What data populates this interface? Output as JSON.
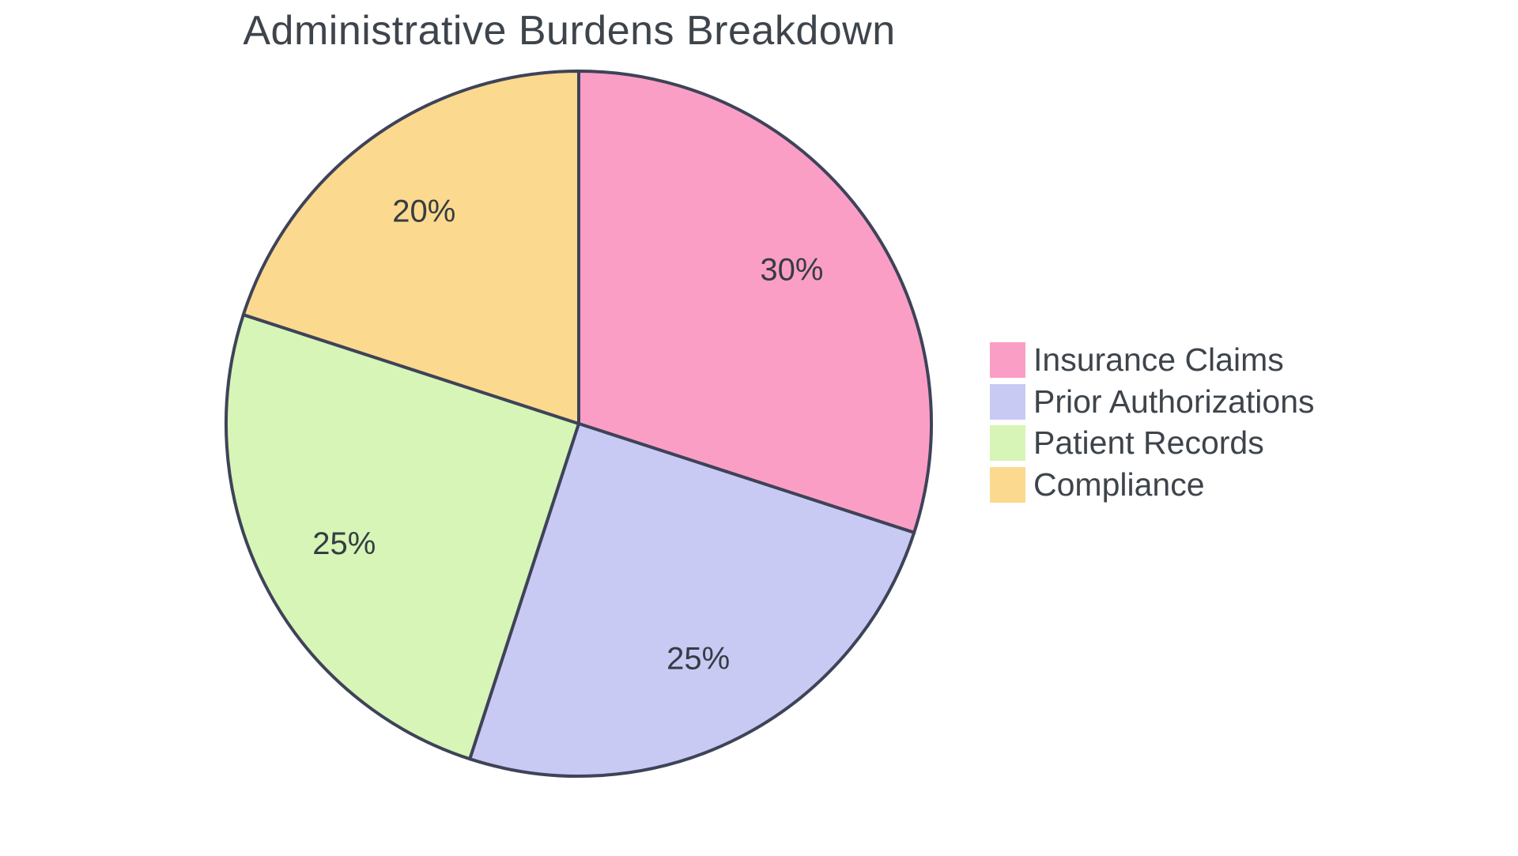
{
  "chart_data": {
    "type": "pie",
    "title": "Administrative Burdens Breakdown",
    "categories": [
      "Insurance Claims",
      "Prior Authorizations",
      "Patient Records",
      "Compliance"
    ],
    "values": [
      30,
      25,
      25,
      20
    ],
    "value_labels": [
      "30%",
      "25%",
      "25%",
      "20%"
    ],
    "unit": "percent",
    "colors": [
      "#FB9EC6",
      "#C8CAF4",
      "#D6F5B7",
      "#FBD98F"
    ],
    "border_color": "#3E4358",
    "background_color": "#FFFFFF",
    "title_color": "#3E444B",
    "slice_label_color": "#363C43",
    "legend_text_color": "#3E444B",
    "legend_position": "right-center",
    "labels_inside": true,
    "start_angle_deg": 0,
    "direction": "clockwise"
  }
}
